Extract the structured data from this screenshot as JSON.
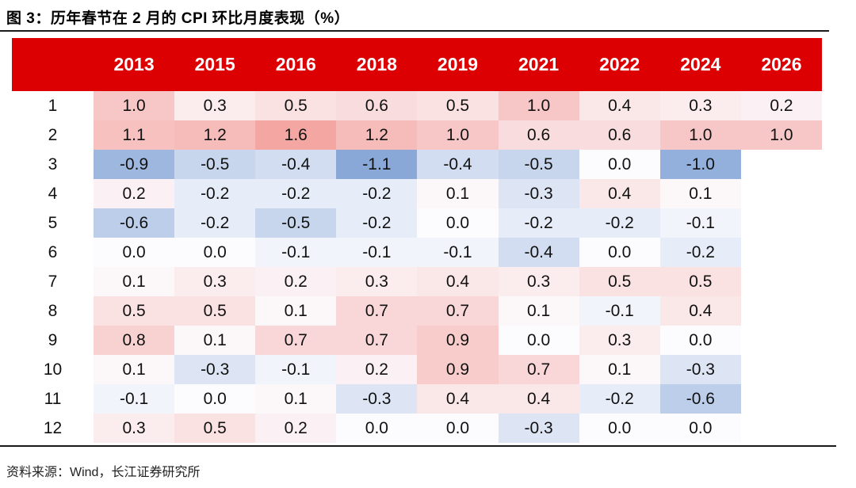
{
  "title": "图 3：历年春节在 2 月的 CPI 环比月度表现（%）",
  "source": "资料来源：Wind，长江证券研究所",
  "colors": {
    "header_bg": "#DC0003",
    "header_text": "#FFFFFF",
    "rule_line": "#1A1A1A",
    "heat_max_red": "#F4A6A3",
    "heat_mid_white": "#FCFCFF",
    "heat_min_blue": "#89A8D8",
    "empty_cell": "#FFFFFF"
  },
  "chart_data": {
    "type": "heatmap",
    "title": "历年春节在 2 月的 CPI 环比月度表现（%）",
    "columns": [
      "2013",
      "2015",
      "2016",
      "2018",
      "2019",
      "2021",
      "2022",
      "2024",
      "2026"
    ],
    "row_labels": [
      "1",
      "2",
      "3",
      "4",
      "5",
      "6",
      "7",
      "8",
      "9",
      "10",
      "11",
      "12"
    ],
    "values": [
      [
        1.0,
        0.3,
        0.5,
        0.6,
        0.5,
        1.0,
        0.4,
        0.3,
        0.2
      ],
      [
        1.1,
        1.2,
        1.6,
        1.2,
        1.0,
        0.6,
        0.6,
        1.0,
        1.0
      ],
      [
        -0.9,
        -0.5,
        -0.4,
        -1.1,
        -0.4,
        -0.5,
        0.0,
        -1.0,
        null
      ],
      [
        0.2,
        -0.2,
        -0.2,
        -0.2,
        0.1,
        -0.3,
        0.4,
        0.1,
        null
      ],
      [
        -0.6,
        -0.2,
        -0.5,
        -0.2,
        0.0,
        -0.2,
        -0.2,
        -0.1,
        null
      ],
      [
        0.0,
        0.0,
        -0.1,
        -0.1,
        -0.1,
        -0.4,
        0.0,
        -0.2,
        null
      ],
      [
        0.1,
        0.3,
        0.2,
        0.3,
        0.4,
        0.3,
        0.5,
        0.5,
        null
      ],
      [
        0.5,
        0.5,
        0.1,
        0.7,
        0.7,
        0.1,
        -0.1,
        0.4,
        null
      ],
      [
        0.8,
        0.1,
        0.7,
        0.7,
        0.9,
        0.0,
        0.3,
        0.0,
        null
      ],
      [
        0.1,
        -0.3,
        -0.1,
        0.2,
        0.9,
        0.7,
        0.1,
        -0.3,
        null
      ],
      [
        -0.1,
        0.0,
        0.1,
        -0.3,
        0.4,
        0.4,
        -0.2,
        -0.6,
        null
      ],
      [
        0.3,
        0.5,
        0.2,
        0.0,
        0.0,
        -0.3,
        0.0,
        0.0,
        null
      ]
    ],
    "scale": {
      "min": -1.1,
      "max": 1.6,
      "midpoint": 0
    },
    "legend": "none",
    "grid": false
  }
}
